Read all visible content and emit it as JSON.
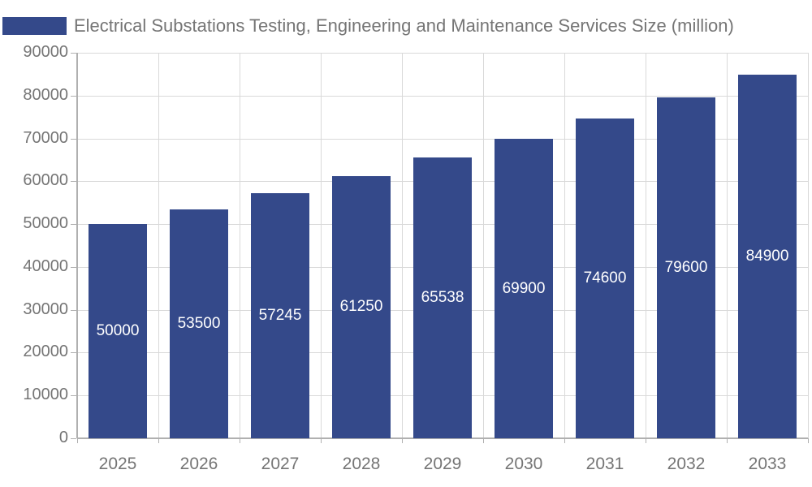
{
  "legend": {
    "swatch_color": "#34498a"
  },
  "chart_data": {
    "type": "bar",
    "title": "Electrical Substations Testing, Engineering and Maintenance Services Size (million)",
    "categories": [
      "2025",
      "2026",
      "2027",
      "2028",
      "2029",
      "2030",
      "2031",
      "2032",
      "2033"
    ],
    "values": [
      50000,
      53500,
      57245,
      61250,
      65538,
      69900,
      74600,
      79600,
      84900
    ],
    "data_labels": [
      "50000",
      "53500",
      "57245",
      "61250",
      "65538",
      "69900",
      "74600",
      "79600",
      "84900"
    ],
    "xlabel": "",
    "ylabel": "",
    "ylim": [
      0,
      90000
    ],
    "ytick_interval": 10000,
    "ytick_labels": [
      "0",
      "10000",
      "20000",
      "30000",
      "40000",
      "50000",
      "60000",
      "70000",
      "80000",
      "90000"
    ],
    "grid": true,
    "legend_position": "top-left",
    "bar_color": "#34498a",
    "bar_label_color": "#ffffff",
    "axis_color": "#b0b0b0",
    "gridline_color": "#d9d9d9",
    "text_color": "#757575"
  }
}
